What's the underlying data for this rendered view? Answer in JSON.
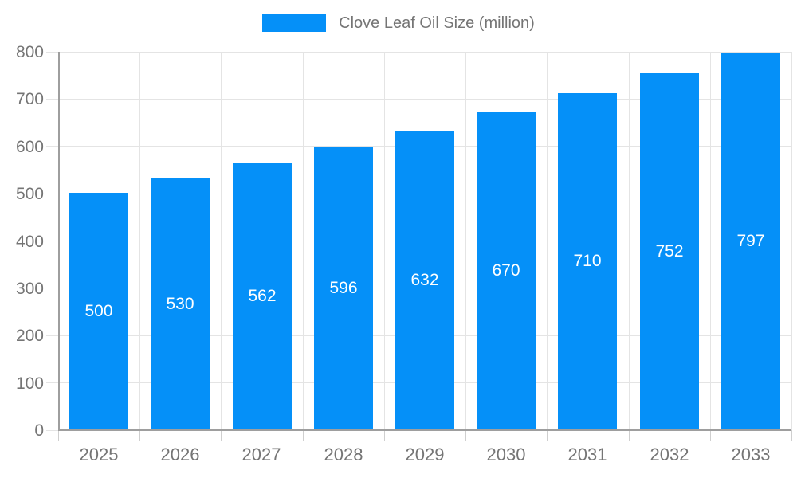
{
  "chart_data": {
    "type": "bar",
    "title": "",
    "legend": "Clove Leaf Oil Size (million)",
    "legend_position": "top",
    "categories": [
      "2025",
      "2026",
      "2027",
      "2028",
      "2029",
      "2030",
      "2031",
      "2032",
      "2033"
    ],
    "values": [
      500,
      530,
      562,
      596,
      632,
      670,
      710,
      752,
      797
    ],
    "xlabel": "",
    "ylabel": "",
    "ylim": [
      0,
      800
    ],
    "ytick_step": 100,
    "yticks": [
      0,
      100,
      200,
      300,
      400,
      500,
      600,
      700,
      800
    ],
    "grid": true,
    "colors": {
      "bar": "#0590f8",
      "grid": "#e4e4e4",
      "tick": "#cfcfcf",
      "axis": "#9e9e9e",
      "tick_text": "#757575",
      "value_text": "#ffffff"
    }
  }
}
